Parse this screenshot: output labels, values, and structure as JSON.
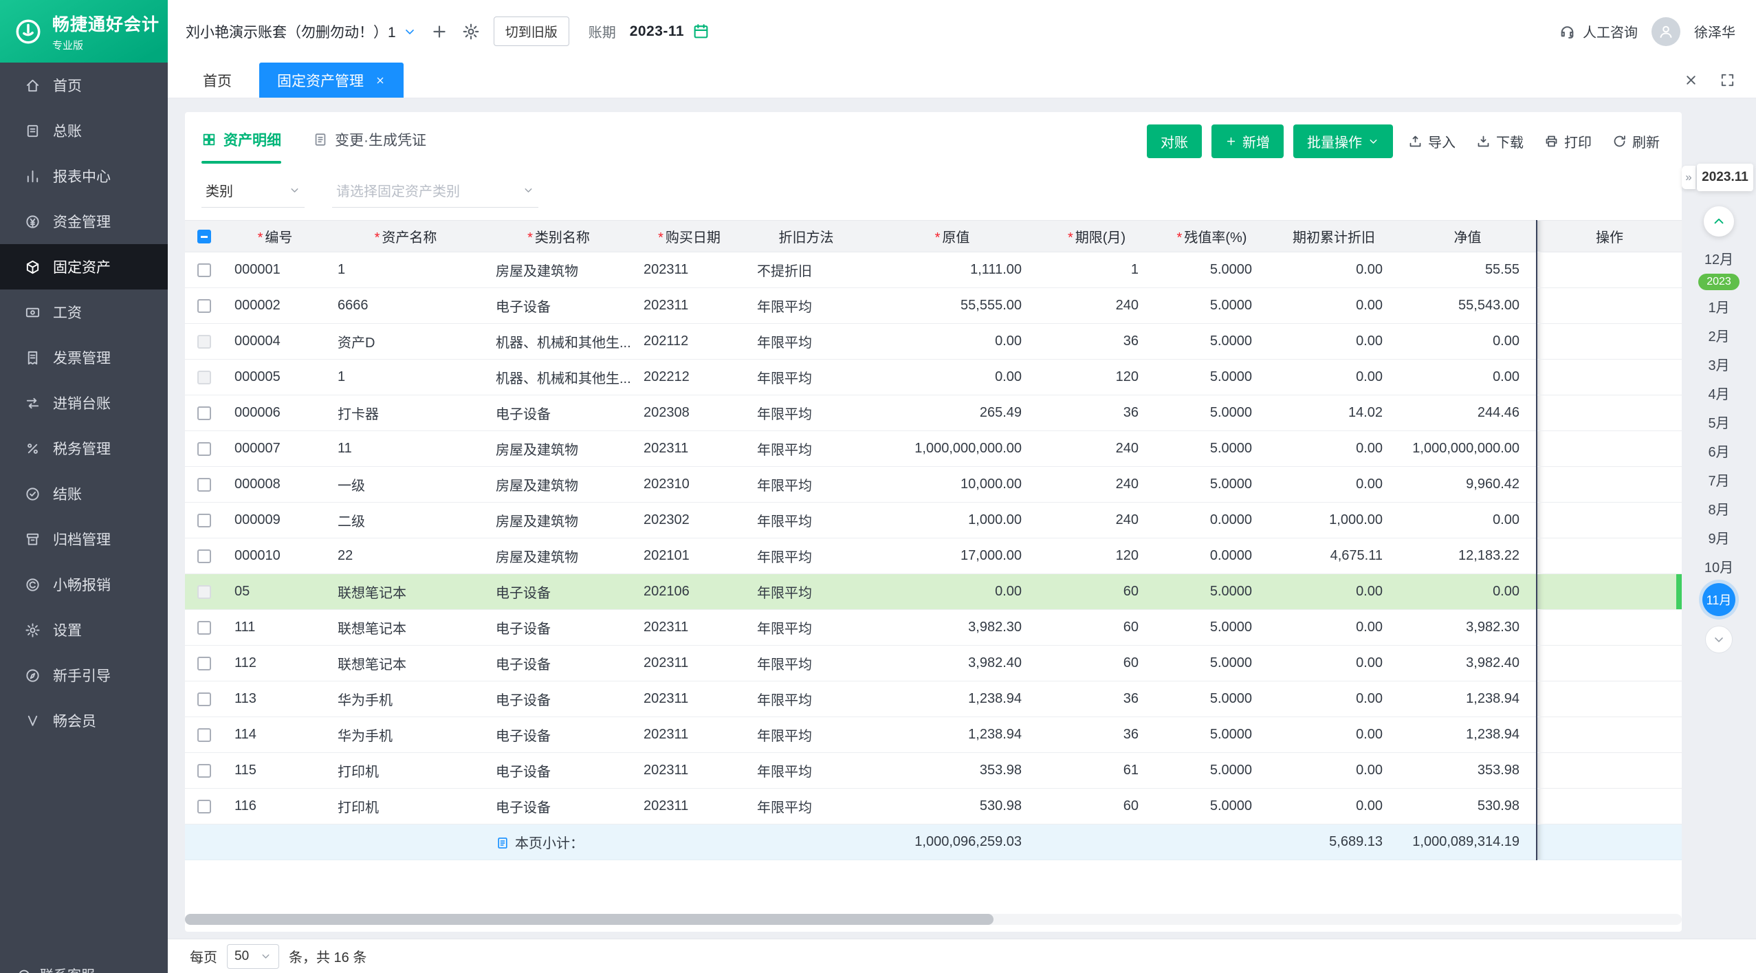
{
  "colors": {
    "brand_green": "#00b578",
    "accent_blue": "#1890ff",
    "required_red": "#f5222d",
    "highlight_row": "#d8f0cf",
    "sidebar_bg": "#3e4450"
  },
  "topbar": {
    "logo_title": "畅捷通好会计",
    "logo_subtitle": "专业版",
    "account_name": "刘小艳演示账套（勿删勿动！）1",
    "switch_old_label": "切到旧版",
    "period_label": "账期",
    "period_value": "2023-11",
    "support_label": "人工咨询",
    "user_name": "徐泽华"
  },
  "sidebar": {
    "items": [
      {
        "label": "首页",
        "icon": "home"
      },
      {
        "label": "总账",
        "icon": "ledger"
      },
      {
        "label": "报表中心",
        "icon": "reports"
      },
      {
        "label": "资金管理",
        "icon": "funds"
      },
      {
        "label": "固定资产",
        "icon": "assets",
        "active": true
      },
      {
        "label": "工资",
        "icon": "payroll"
      },
      {
        "label": "发票管理",
        "icon": "invoice"
      },
      {
        "label": "进销台账",
        "icon": "trade"
      },
      {
        "label": "税务管理",
        "icon": "tax"
      },
      {
        "label": "结账",
        "icon": "closing"
      },
      {
        "label": "归档管理",
        "icon": "archive"
      },
      {
        "label": "小畅报销",
        "icon": "reimburse"
      },
      {
        "label": "设置",
        "icon": "settings"
      },
      {
        "label": "新手引导",
        "icon": "guide"
      },
      {
        "label": "畅会员",
        "icon": "member"
      }
    ],
    "bottom_label": "联系客服"
  },
  "tabs": {
    "home": "首页",
    "active": "固定资产管理"
  },
  "toolbar": {
    "subtab_detail": "资产明细",
    "subtab_change": "变更·生成凭证",
    "reconcile": "对账",
    "add": "新增",
    "batch": "批量操作",
    "import": "导入",
    "download": "下载",
    "print": "打印",
    "refresh": "刷新"
  },
  "filters": {
    "category_label": "类别",
    "category_placeholder": "请选择固定资产类别"
  },
  "table": {
    "headers": [
      {
        "label": "编号",
        "required": true
      },
      {
        "label": "资产名称",
        "required": true
      },
      {
        "label": "类别名称",
        "required": true
      },
      {
        "label": "购买日期",
        "required": true
      },
      {
        "label": "折旧方法",
        "required": false
      },
      {
        "label": "原值",
        "required": true
      },
      {
        "label": "期限(月)",
        "required": true
      },
      {
        "label": "残值率(%)",
        "required": true
      },
      {
        "label": "期初累计折旧",
        "required": false
      },
      {
        "label": "净值",
        "required": false
      },
      {
        "label": "操作",
        "required": false
      }
    ],
    "rows": [
      {
        "id": "000001",
        "name": "1",
        "category": "房屋及建筑物",
        "date": "202311",
        "method": "不提折旧",
        "cost": "1,111.00",
        "months": "1",
        "residual": "5.0000",
        "accum": "0.00",
        "net": "55.55",
        "disabled": false,
        "highlight": false
      },
      {
        "id": "000002",
        "name": "6666",
        "category": "电子设备",
        "date": "202311",
        "method": "年限平均",
        "cost": "55,555.00",
        "months": "240",
        "residual": "5.0000",
        "accum": "0.00",
        "net": "55,543.00",
        "disabled": false,
        "highlight": false
      },
      {
        "id": "000004",
        "name": "资产D",
        "category": "机器、机械和其他生...",
        "date": "202112",
        "method": "年限平均",
        "cost": "0.00",
        "months": "36",
        "residual": "5.0000",
        "accum": "0.00",
        "net": "0.00",
        "disabled": true,
        "highlight": false
      },
      {
        "id": "000005",
        "name": "1",
        "category": "机器、机械和其他生...",
        "date": "202212",
        "method": "年限平均",
        "cost": "0.00",
        "months": "120",
        "residual": "5.0000",
        "accum": "0.00",
        "net": "0.00",
        "disabled": true,
        "highlight": false
      },
      {
        "id": "000006",
        "name": "打卡器",
        "category": "电子设备",
        "date": "202308",
        "method": "年限平均",
        "cost": "265.49",
        "months": "36",
        "residual": "5.0000",
        "accum": "14.02",
        "net": "244.46",
        "disabled": false,
        "highlight": false
      },
      {
        "id": "000007",
        "name": "11",
        "category": "房屋及建筑物",
        "date": "202311",
        "method": "年限平均",
        "cost": "1,000,000,000.00",
        "months": "240",
        "residual": "5.0000",
        "accum": "0.00",
        "net": "1,000,000,000.00",
        "disabled": false,
        "highlight": false
      },
      {
        "id": "000008",
        "name": "一级",
        "category": "房屋及建筑物",
        "date": "202310",
        "method": "年限平均",
        "cost": "10,000.00",
        "months": "240",
        "residual": "5.0000",
        "accum": "0.00",
        "net": "9,960.42",
        "disabled": false,
        "highlight": false
      },
      {
        "id": "000009",
        "name": "二级",
        "category": "房屋及建筑物",
        "date": "202302",
        "method": "年限平均",
        "cost": "1,000.00",
        "months": "240",
        "residual": "0.0000",
        "accum": "1,000.00",
        "net": "0.00",
        "disabled": false,
        "highlight": false
      },
      {
        "id": "000010",
        "name": "22",
        "category": "房屋及建筑物",
        "date": "202101",
        "method": "年限平均",
        "cost": "17,000.00",
        "months": "120",
        "residual": "0.0000",
        "accum": "4,675.11",
        "net": "12,183.22",
        "disabled": false,
        "highlight": false
      },
      {
        "id": "05",
        "name": "联想笔记本",
        "category": "电子设备",
        "date": "202106",
        "method": "年限平均",
        "cost": "0.00",
        "months": "60",
        "residual": "5.0000",
        "accum": "0.00",
        "net": "0.00",
        "disabled": true,
        "highlight": true
      },
      {
        "id": "111",
        "name": "联想笔记本",
        "category": "电子设备",
        "date": "202311",
        "method": "年限平均",
        "cost": "3,982.30",
        "months": "60",
        "residual": "5.0000",
        "accum": "0.00",
        "net": "3,982.30",
        "disabled": false,
        "highlight": false
      },
      {
        "id": "112",
        "name": "联想笔记本",
        "category": "电子设备",
        "date": "202311",
        "method": "年限平均",
        "cost": "3,982.40",
        "months": "60",
        "residual": "5.0000",
        "accum": "0.00",
        "net": "3,982.40",
        "disabled": false,
        "highlight": false
      },
      {
        "id": "113",
        "name": "华为手机",
        "category": "电子设备",
        "date": "202311",
        "method": "年限平均",
        "cost": "1,238.94",
        "months": "36",
        "residual": "5.0000",
        "accum": "0.00",
        "net": "1,238.94",
        "disabled": false,
        "highlight": false
      },
      {
        "id": "114",
        "name": "华为手机",
        "category": "电子设备",
        "date": "202311",
        "method": "年限平均",
        "cost": "1,238.94",
        "months": "36",
        "residual": "5.0000",
        "accum": "0.00",
        "net": "1,238.94",
        "disabled": false,
        "highlight": false
      },
      {
        "id": "115",
        "name": "打印机",
        "category": "电子设备",
        "date": "202311",
        "method": "年限平均",
        "cost": "353.98",
        "months": "61",
        "residual": "5.0000",
        "accum": "0.00",
        "net": "353.98",
        "disabled": false,
        "highlight": false
      },
      {
        "id": "116",
        "name": "打印机",
        "category": "电子设备",
        "date": "202311",
        "method": "年限平均",
        "cost": "530.98",
        "months": "60",
        "residual": "5.0000",
        "accum": "0.00",
        "net": "530.98",
        "disabled": false,
        "highlight": false
      }
    ],
    "summary": {
      "label": "本页小计：",
      "cost": "1,000,096,259.03",
      "accum": "5,689.13",
      "net": "1,000,089,314.19"
    }
  },
  "calendar": {
    "current": "2023.11",
    "timeline": [
      {
        "type": "month",
        "label": "12月"
      },
      {
        "type": "year",
        "label": "2023"
      },
      {
        "type": "month",
        "label": "1月"
      },
      {
        "type": "month",
        "label": "2月"
      },
      {
        "type": "month",
        "label": "3月"
      },
      {
        "type": "month",
        "label": "4月"
      },
      {
        "type": "month",
        "label": "5月"
      },
      {
        "type": "month",
        "label": "6月"
      },
      {
        "type": "month",
        "label": "7月"
      },
      {
        "type": "month",
        "label": "8月"
      },
      {
        "type": "month",
        "label": "9月"
      },
      {
        "type": "month",
        "label": "10月"
      },
      {
        "type": "month",
        "label": "11月",
        "active": true
      }
    ]
  },
  "pagination": {
    "per_page_label": "每页",
    "page_size": "50",
    "total_suffix": "条，共 16 条"
  }
}
